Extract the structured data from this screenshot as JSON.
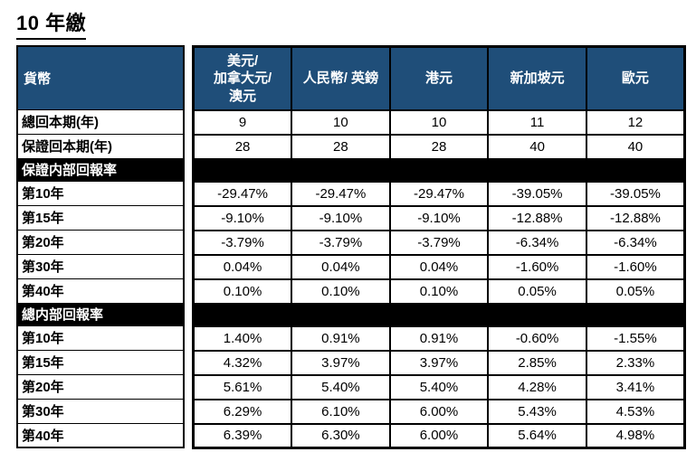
{
  "title": "10 年繳",
  "colors": {
    "header_bg": "#1f4e79",
    "section_bg": "#000000",
    "header_text": "#ffffff",
    "border": "#000000"
  },
  "table": {
    "corner_header": "貨幣",
    "column_headers": [
      "美元/\n加拿大元/\n澳元",
      "人民幣/ 英鎊",
      "港元",
      "新加坡元",
      "歐元"
    ],
    "rows": [
      {
        "type": "value",
        "label": "總回本期(年)",
        "values": [
          "9",
          "10",
          "10",
          "11",
          "12"
        ]
      },
      {
        "type": "value",
        "label": "保證回本期(年)",
        "values": [
          "28",
          "28",
          "28",
          "40",
          "40"
        ]
      },
      {
        "type": "section",
        "label": "保證内部回報率"
      },
      {
        "type": "value",
        "label": "第10年",
        "values": [
          "-29.47%",
          "-29.47%",
          "-29.47%",
          "-39.05%",
          "-39.05%"
        ]
      },
      {
        "type": "value",
        "label": "第15年",
        "values": [
          "-9.10%",
          "-9.10%",
          "-9.10%",
          "-12.88%",
          "-12.88%"
        ]
      },
      {
        "type": "value",
        "label": "第20年",
        "values": [
          "-3.79%",
          "-3.79%",
          "-3.79%",
          "-6.34%",
          "-6.34%"
        ]
      },
      {
        "type": "value",
        "label": "第30年",
        "values": [
          "0.04%",
          "0.04%",
          "0.04%",
          "-1.60%",
          "-1.60%"
        ]
      },
      {
        "type": "value",
        "label": "第40年",
        "values": [
          "0.10%",
          "0.10%",
          "0.10%",
          "0.05%",
          "0.05%"
        ]
      },
      {
        "type": "section",
        "label": "總内部回報率"
      },
      {
        "type": "value",
        "label": "第10年",
        "values": [
          "1.40%",
          "0.91%",
          "0.91%",
          "-0.60%",
          "-1.55%"
        ]
      },
      {
        "type": "value",
        "label": "第15年",
        "values": [
          "4.32%",
          "3.97%",
          "3.97%",
          "2.85%",
          "2.33%"
        ]
      },
      {
        "type": "value",
        "label": "第20年",
        "values": [
          "5.61%",
          "5.40%",
          "5.40%",
          "4.28%",
          "3.41%"
        ]
      },
      {
        "type": "value",
        "label": "第30年",
        "values": [
          "6.29%",
          "6.10%",
          "6.00%",
          "5.43%",
          "4.53%"
        ]
      },
      {
        "type": "value",
        "label": "第40年",
        "values": [
          "6.39%",
          "6.30%",
          "6.00%",
          "5.64%",
          "4.98%"
        ]
      }
    ]
  }
}
